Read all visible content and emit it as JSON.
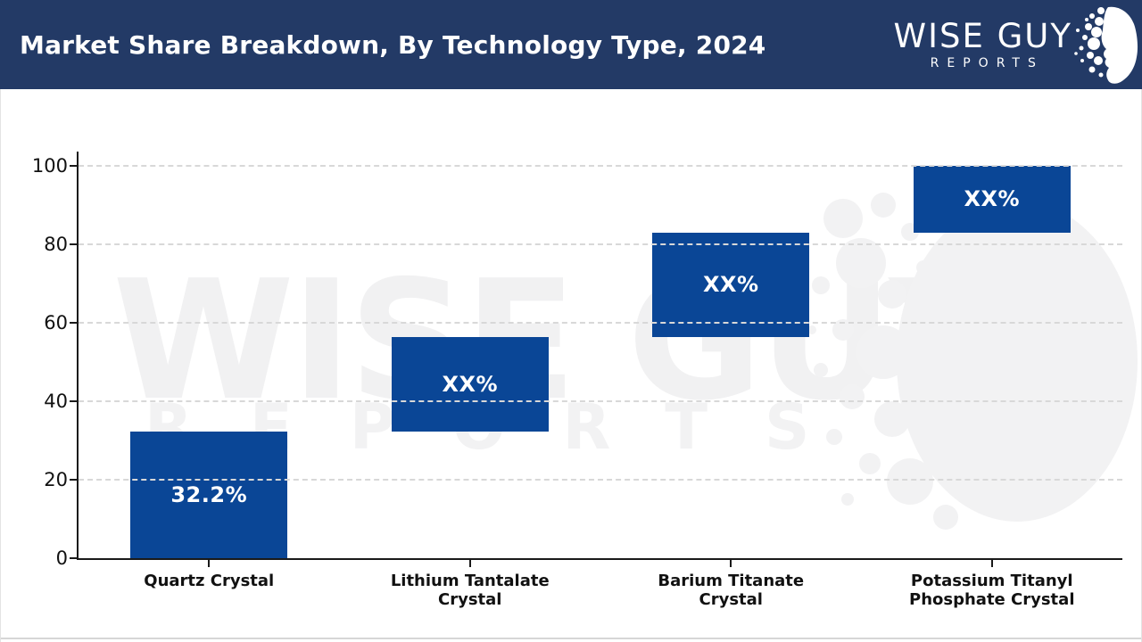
{
  "header": {
    "title": "Market Share Breakdown, By Technology Type, 2024",
    "bg_color": "#233A66",
    "logo": {
      "brand_top": "WISE GUY",
      "brand_bottom": "REPORTS"
    }
  },
  "watermark": {
    "text_main": "WISE GUY",
    "text_sub": "REPORTS"
  },
  "chart_data": {
    "type": "bar",
    "variant": "floating-waterfall-segments",
    "title": "Market Share Breakdown, By Technology Type, 2024",
    "categories": [
      "Quartz Crystal",
      "Lithium Tantalate Crystal",
      "Barium Titanate Crystal",
      "Potassium Titanyl Phosphate Crystal"
    ],
    "category_lines": [
      [
        "Quartz Crystal"
      ],
      [
        "Lithium Tantalate",
        "Crystal"
      ],
      [
        "Barium Titanate",
        "Crystal"
      ],
      [
        "Potassium Titanyl",
        "Phosphate Crystal"
      ]
    ],
    "bars": [
      {
        "start": 0,
        "end": 32.2,
        "label": "32.2%"
      },
      {
        "start": 32.2,
        "end": 56.4,
        "label": "XX%"
      },
      {
        "start": 56.4,
        "end": 83,
        "label": "XX%"
      },
      {
        "start": 83,
        "end": 100,
        "label": "XX%"
      }
    ],
    "ylim": [
      0,
      100
    ],
    "yticks": [
      0,
      20,
      40,
      60,
      80,
      100
    ],
    "xlabel": "",
    "ylabel": "",
    "legend": "none",
    "grid": {
      "axis": "y",
      "style": "dashed",
      "color": "#D8D8D8",
      "drawn_over_bars": true
    },
    "bar_color": "#0A4696",
    "bar_label_color": "#FFFFFF",
    "axis_color": "#1A1A1A"
  }
}
